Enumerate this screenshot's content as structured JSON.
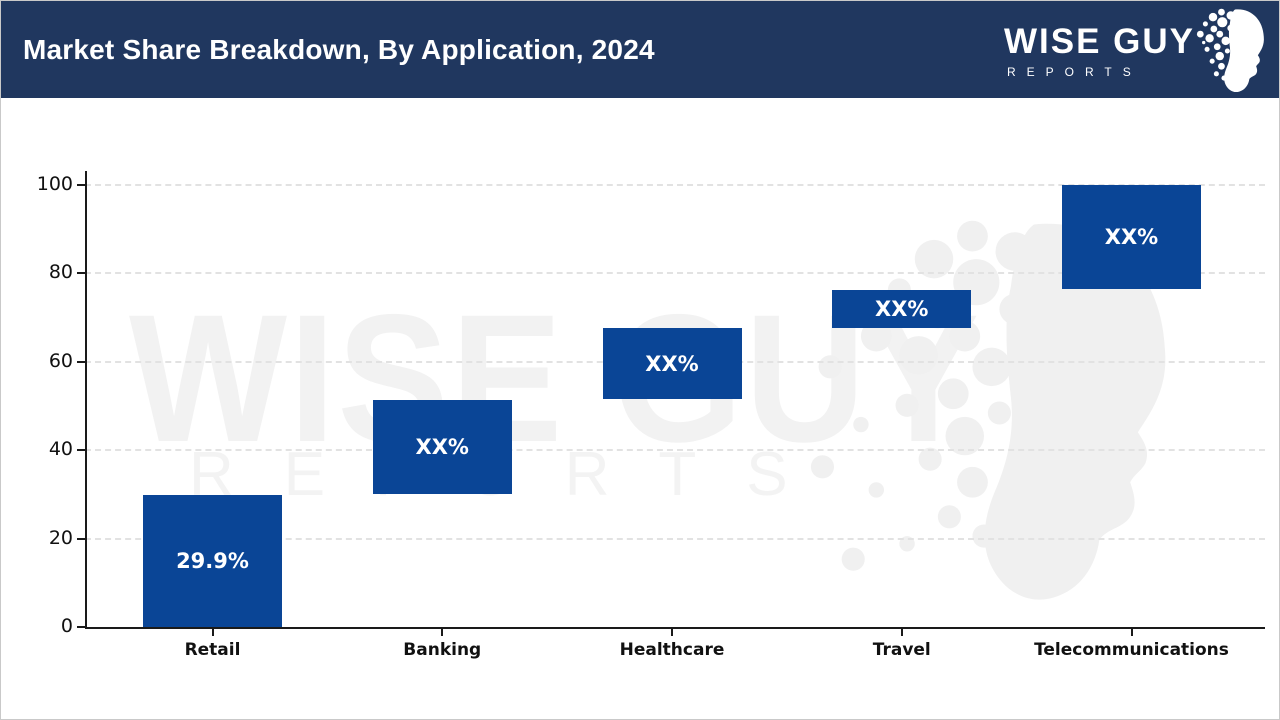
{
  "header": {
    "title": "Market Share Breakdown, By Application, 2024"
  },
  "logo": {
    "name": "WISE GUY",
    "subtitle": "REPORTS"
  },
  "watermark": {
    "name": "WISE GUY",
    "subtitle": "REPORTS"
  },
  "chart_data": {
    "type": "bar",
    "subtype": "floating-waterfall",
    "title": "Market Share Breakdown, By Application, 2024",
    "categories": [
      "Retail",
      "Banking",
      "Healthcare",
      "Travel",
      "Telecommunications"
    ],
    "bars": [
      {
        "category": "Retail",
        "from": 0,
        "to": 29.9,
        "label": "29.9%"
      },
      {
        "category": "Banking",
        "from": 30,
        "to": 51.4,
        "label": "XX%"
      },
      {
        "category": "Healthcare",
        "from": 51.6,
        "to": 67.6,
        "label": "XX%"
      },
      {
        "category": "Travel",
        "from": 67.7,
        "to": 76.3,
        "label": "XX%"
      },
      {
        "category": "Telecommunications",
        "from": 76.4,
        "to": 100,
        "label": "XX%"
      }
    ],
    "yticks": [
      0,
      20,
      40,
      60,
      80,
      100
    ],
    "ylim": [
      0,
      105
    ],
    "xlabel": "",
    "ylabel": "",
    "grid": "horizontal-dashed",
    "legend": "none",
    "bar_color": "#0a4596",
    "label_color": "#ffffff",
    "header_color": "#20375f"
  }
}
